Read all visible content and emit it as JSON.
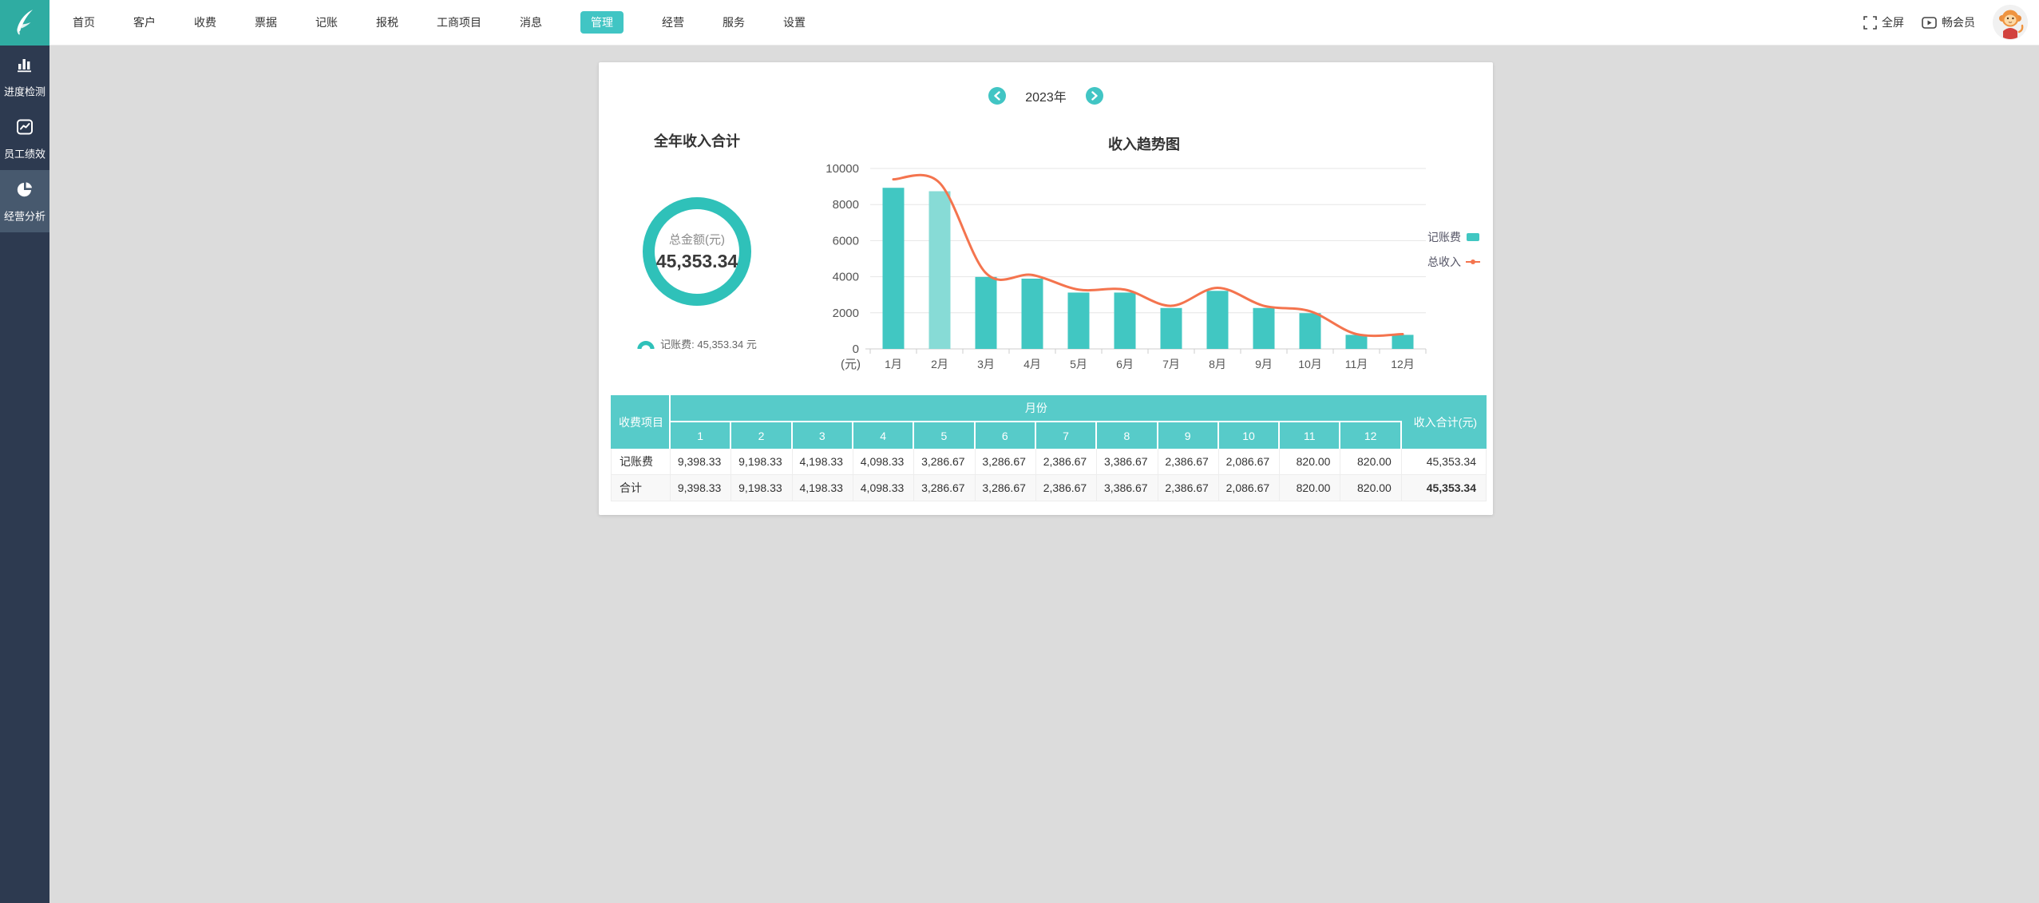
{
  "colors": {
    "accent": "#41C5C4",
    "bar": "#41C7C2",
    "bar_highlight": "#87DBD6",
    "line": "#F4744E",
    "donut": "#2FC1B9",
    "table_header": "#57CBC9",
    "sidebar_bg": "#2D3A50",
    "sidebar_selected": "#47596E",
    "page_bg": "#DCDCDC",
    "logo_bg": "#2FACA2"
  },
  "topbar": {
    "nav": [
      "首页",
      "客户",
      "收费",
      "票据",
      "记账",
      "报税",
      "工商项目",
      "消息",
      "管理",
      "经营",
      "服务",
      "设置"
    ],
    "selected": "管理",
    "fullscreen_label": "全屏",
    "member_label": "畅会员"
  },
  "sidebar": {
    "items": [
      {
        "label": "进度检测",
        "icon": "bar-chart-icon",
        "selected": false
      },
      {
        "label": "员工绩效",
        "icon": "trend-box-icon",
        "selected": false
      },
      {
        "label": "经营分析",
        "icon": "pie-chart-icon",
        "selected": true
      }
    ]
  },
  "card": {
    "year": "2023年"
  },
  "chart_data": [
    {
      "type": "pie",
      "title": "全年收入合计",
      "center_label": "总金额(元)",
      "center_value": "45,353.34",
      "legend_label": "记账费:  45,353.34 元",
      "series": [
        {
          "name": "记账费",
          "value": 45353.34,
          "percent": 100
        }
      ],
      "color": "#2FC1B9"
    },
    {
      "type": "bar",
      "title": "收入趋势图",
      "categories": [
        "1月",
        "2月",
        "3月",
        "4月",
        "5月",
        "6月",
        "7月",
        "8月",
        "9月",
        "10月",
        "11月",
        "12月"
      ],
      "series": [
        {
          "name": "记账费",
          "type": "bar",
          "color": "#41C7C2",
          "highlight_color": "#87DBD6",
          "highlight_index": 1,
          "values": [
            9398.33,
            9198.33,
            4198.33,
            4098.33,
            3286.67,
            3286.67,
            2386.67,
            3386.67,
            2386.67,
            2086.67,
            820,
            820
          ]
        },
        {
          "name": "总收入",
          "type": "line",
          "color": "#F4744E",
          "values": [
            9398.33,
            9198.33,
            4198.33,
            4098.33,
            3286.67,
            3286.67,
            2386.67,
            3386.67,
            2386.67,
            2086.67,
            820,
            820
          ]
        }
      ],
      "ylim": [
        0,
        10000
      ],
      "yticks": [
        0,
        2000,
        4000,
        6000,
        8000,
        10000
      ],
      "y_unit": "(元)",
      "grid": true,
      "legend_position": "right"
    }
  ],
  "table": {
    "corner_header": "收费项目",
    "group_header": "月份",
    "month_headers": [
      "1",
      "2",
      "3",
      "4",
      "5",
      "6",
      "7",
      "8",
      "9",
      "10",
      "11",
      "12"
    ],
    "total_header": "收入合计(元)",
    "rows": [
      {
        "name": "记账费",
        "values": [
          "9,398.33",
          "9,198.33",
          "4,198.33",
          "4,098.33",
          "3,286.67",
          "3,286.67",
          "2,386.67",
          "3,386.67",
          "2,386.67",
          "2,086.67",
          "820.00",
          "820.00"
        ],
        "total": "45,353.34",
        "total_bold": false
      },
      {
        "name": "合计",
        "values": [
          "9,398.33",
          "9,198.33",
          "4,198.33",
          "4,098.33",
          "3,286.67",
          "3,286.67",
          "2,386.67",
          "3,386.67",
          "2,386.67",
          "2,086.67",
          "820.00",
          "820.00"
        ],
        "total": "45,353.34",
        "total_bold": true
      }
    ]
  }
}
